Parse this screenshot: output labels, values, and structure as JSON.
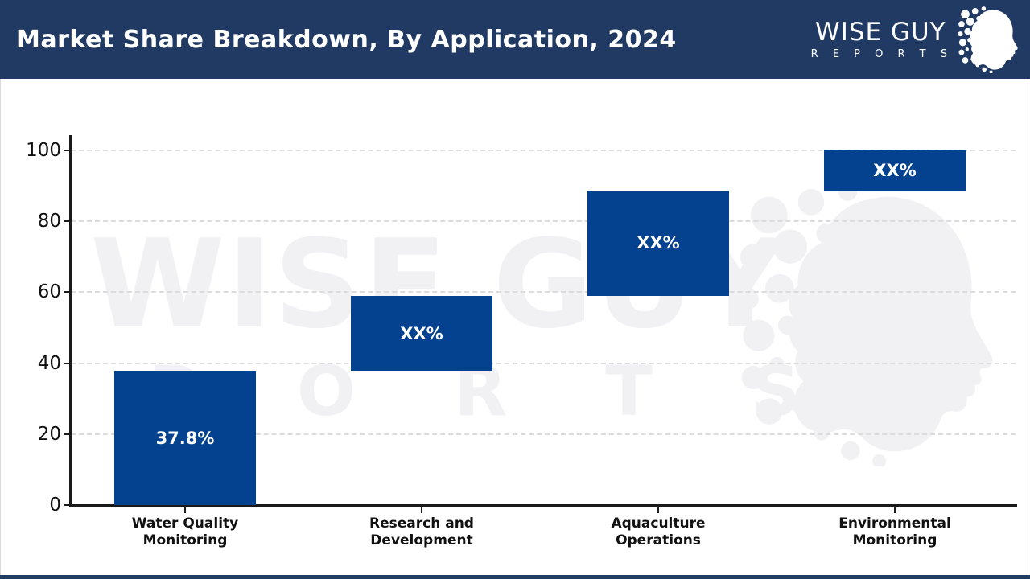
{
  "header": {
    "title": "Market Share Breakdown, By Application, 2024",
    "bg_color": "#213a64",
    "logo": {
      "line1": "WISE GUY",
      "line2": "R E P O R T S"
    }
  },
  "watermark": {
    "line1": "WISE GUY",
    "line2": "P O R T S"
  },
  "chart_data": {
    "type": "bar",
    "subtype": "waterfall",
    "title": "Market Share Breakdown, By Application, 2024",
    "categories": [
      {
        "lines": [
          "Water Quality",
          "Monitoring"
        ]
      },
      {
        "lines": [
          "Research and",
          "Development"
        ]
      },
      {
        "lines": [
          "Aquaculture",
          "Operations"
        ]
      },
      {
        "lines": [
          "Environmental",
          "Monitoring"
        ]
      }
    ],
    "segments": [
      {
        "category": "Water Quality Monitoring",
        "start": 0,
        "end": 37.8,
        "label": "37.8%"
      },
      {
        "category": "Research and Development",
        "start": 37.8,
        "end": 59.0,
        "label": "XX%"
      },
      {
        "category": "Aquaculture Operations",
        "start": 59.0,
        "end": 88.7,
        "label": "XX%"
      },
      {
        "category": "Environmental Monitoring",
        "start": 88.7,
        "end": 100.0,
        "label": "XX%"
      }
    ],
    "ylim": [
      0,
      100
    ],
    "yticks": [
      0,
      20,
      40,
      60,
      80,
      100
    ],
    "xlabel": "",
    "ylabel": "",
    "grid": "horizontal-dashed",
    "legend": null,
    "bar_color": "#04418f",
    "bar_label_color": "#ffffff",
    "grid_color": "#dcdcdc",
    "axis_color": "#1a1a1a",
    "watermark_color": "#f1f1f4"
  }
}
